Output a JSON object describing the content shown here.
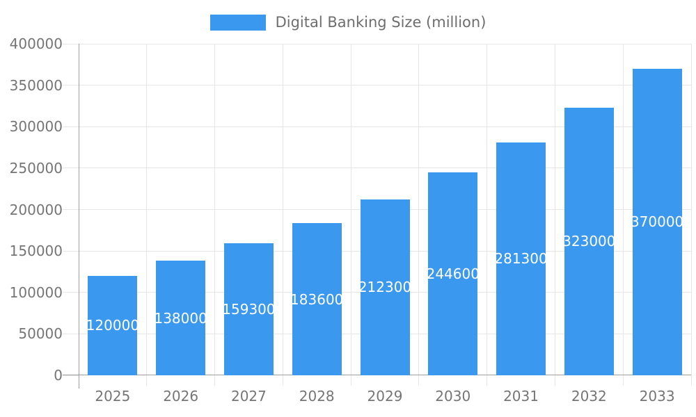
{
  "chart_data": {
    "type": "bar",
    "title": "Digital Banking Size (million)",
    "legend": {
      "position": "top",
      "label": "Digital Banking Size (million)"
    },
    "categories": [
      "2025",
      "2026",
      "2027",
      "2028",
      "2029",
      "2030",
      "2031",
      "2032",
      "2033"
    ],
    "series": [
      {
        "name": "Digital Banking Size (million)",
        "values": [
          120000,
          138000,
          159300,
          183600,
          212300,
          244600,
          281300,
          323000,
          370000
        ]
      }
    ],
    "bar_labels": [
      "120000",
      "138000",
      "159300",
      "183600",
      "212300",
      "244600",
      "281300",
      "323000",
      "370000"
    ],
    "xlabel": "",
    "ylabel": "",
    "ylim": [
      0,
      400000
    ],
    "yticks": [
      0,
      50000,
      100000,
      150000,
      200000,
      250000,
      300000,
      350000,
      400000
    ],
    "ytick_labels": [
      "0",
      "50000",
      "100000",
      "150000",
      "200000",
      "250000",
      "300000",
      "350000",
      "400000"
    ],
    "grid": true,
    "colors": {
      "bar": "#3b98ef",
      "grid": "#e6e6e6",
      "axis": "#9f9f9f",
      "tick_text": "#757575",
      "title_text": "#6e6e6e",
      "value_text": "#ffffff",
      "background": "#ffffff"
    }
  }
}
